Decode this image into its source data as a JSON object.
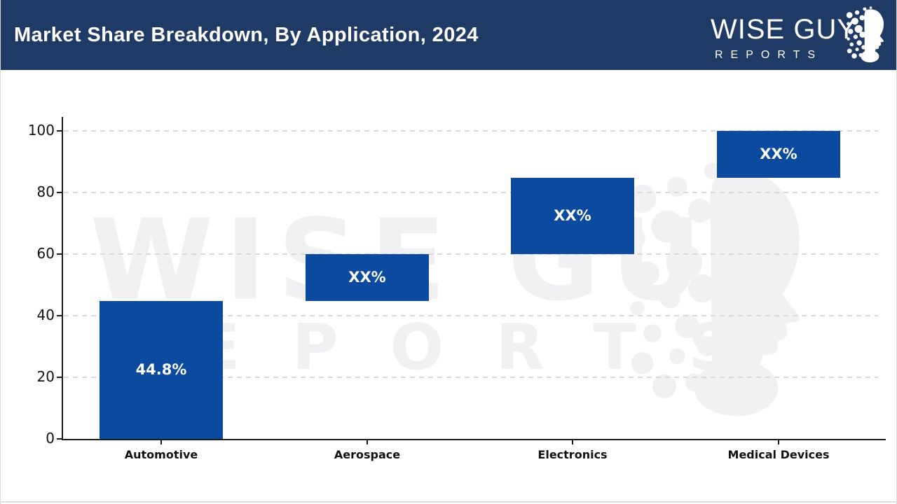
{
  "header": {
    "title": "Market Share Breakdown, By Application, 2024",
    "logo": {
      "line1": "WISE GUY",
      "line2": "REPORTS"
    }
  },
  "watermark": {
    "line1": "WISE GUY",
    "line2": "REPORTS"
  },
  "colors": {
    "header_bg": "#203a66",
    "bar": "#0b4a9f",
    "bar_label": "#ffffff",
    "gridline": "#d8d8d8",
    "axis": "#1a1a1a",
    "watermark": "#f1f1f4"
  },
  "chart_data": {
    "type": "bar",
    "subtype": "waterfall",
    "title": "Market Share Breakdown, By Application, 2024",
    "categories": [
      "Automotive",
      "Aerospace",
      "Electronics",
      "Medical Devices"
    ],
    "segments": [
      {
        "category": "Automotive",
        "start": 0,
        "end": 44.8,
        "value": 44.8,
        "label": "44.8%"
      },
      {
        "category": "Aerospace",
        "start": 44.8,
        "end": 60.0,
        "value": 15.2,
        "label": "XX%"
      },
      {
        "category": "Electronics",
        "start": 60.0,
        "end": 84.8,
        "value": 24.8,
        "label": "XX%"
      },
      {
        "category": "Medical Devices",
        "start": 84.8,
        "end": 100,
        "value": 15.2,
        "label": "XX%"
      }
    ],
    "yticks": [
      0,
      20,
      40,
      60,
      80,
      100
    ],
    "ylim": [
      0,
      100
    ],
    "xlabel": "",
    "ylabel": "",
    "grid": "horizontal-dashed",
    "legend": "none"
  }
}
